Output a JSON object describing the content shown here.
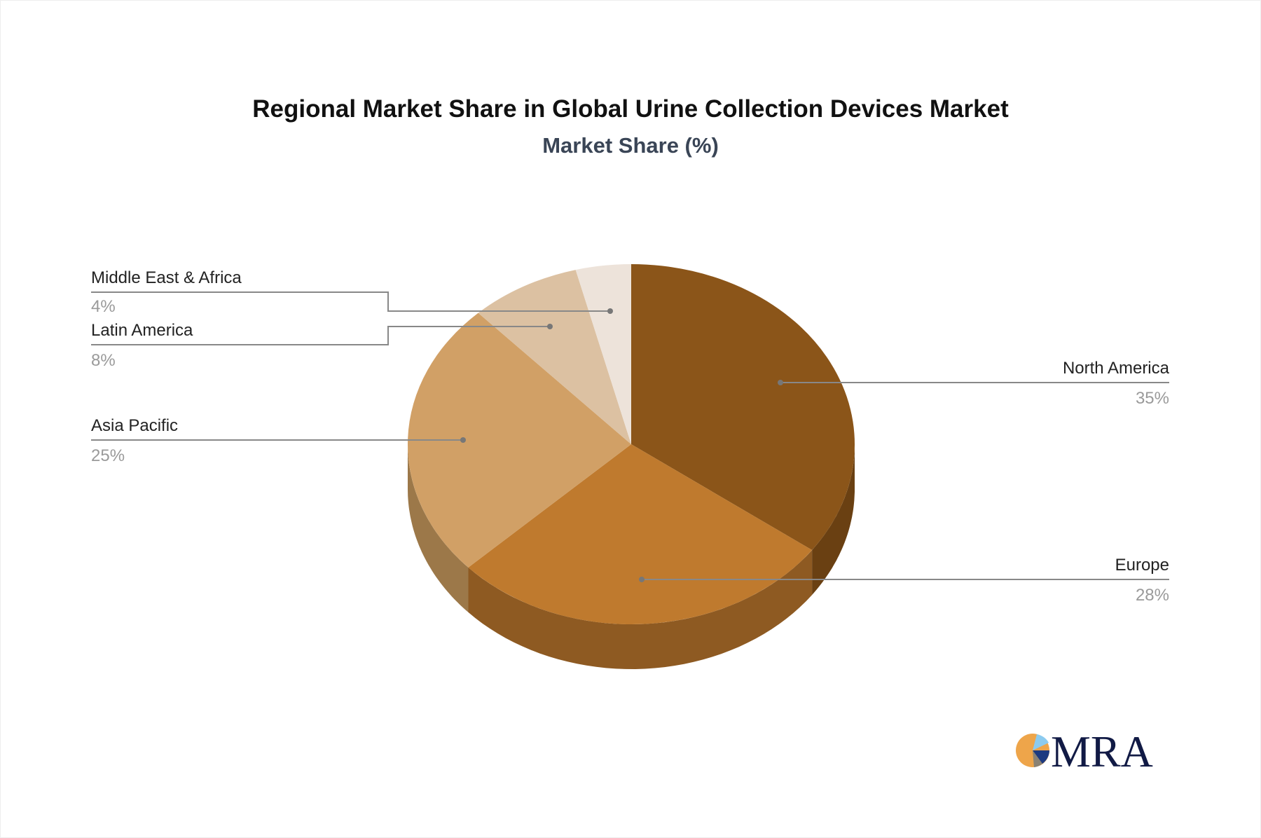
{
  "chart_data": {
    "type": "pie",
    "style": "3d",
    "title": "Regional Market Share in Global Urine Collection Devices Market",
    "subtitle": "Market Share (%)",
    "slices": [
      {
        "label": "North America",
        "value": 35,
        "value_label": "35%",
        "color": "#8b5519",
        "side_color": "#6a4012"
      },
      {
        "label": "Europe",
        "value": 28,
        "value_label": "28%",
        "color": "#bf7a2e",
        "side_color": "#8e5a22"
      },
      {
        "label": "Asia Pacific",
        "value": 25,
        "value_label": "25%",
        "color": "#d1a066",
        "side_color": "#9c7849"
      },
      {
        "label": "Latin America",
        "value": 8,
        "value_label": "8%",
        "color": "#dcc1a2",
        "side_color": "#a8927a"
      },
      {
        "label": "Middle East & Africa",
        "value": 4,
        "value_label": "4%",
        "color": "#ede3da",
        "side_color": "#b5aca4"
      }
    ]
  },
  "logo": {
    "text": "MRA"
  }
}
